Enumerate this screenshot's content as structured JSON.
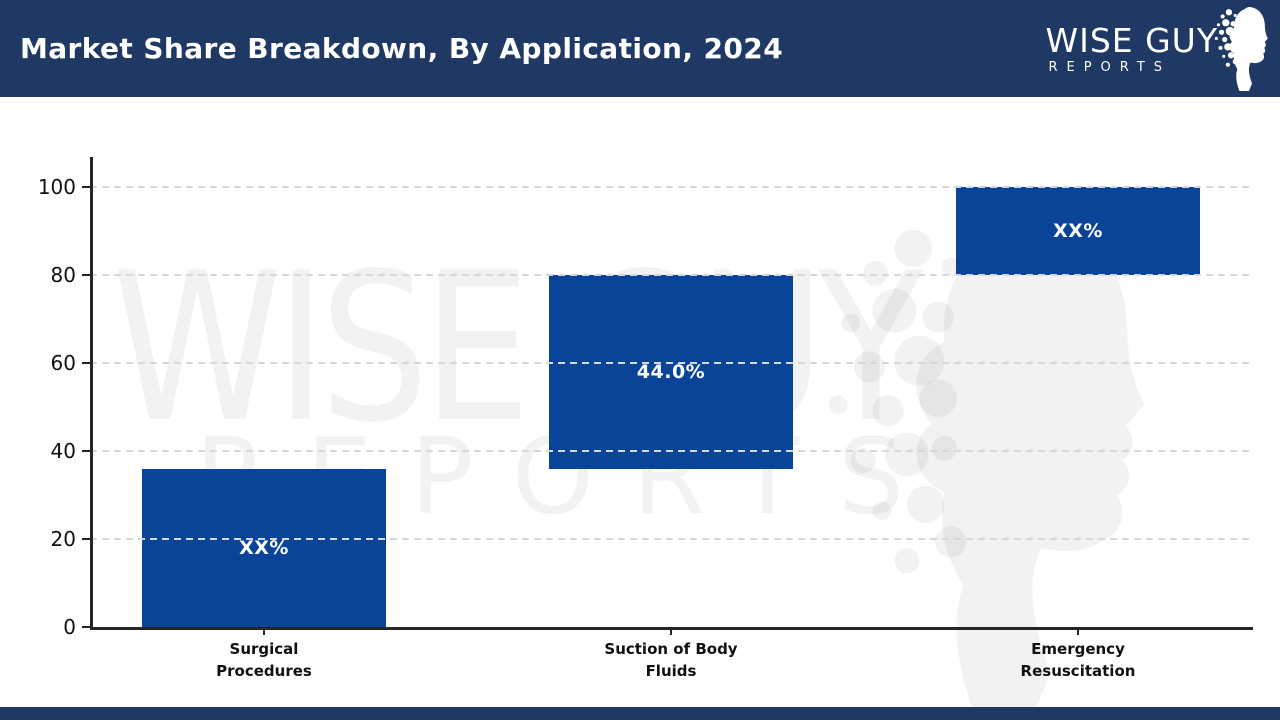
{
  "header": {
    "title": "Market Share Breakdown, By Application, 2024",
    "logo": {
      "brand": "WISE GUY",
      "tagline": "REPORTS"
    }
  },
  "watermark": {
    "brand": "WISE GUY",
    "tagline": "REPORTS"
  },
  "colors": {
    "header_bg": "#1f3864",
    "footer_bg": "#1f3864",
    "bar": "#0a4499",
    "bar_label": "#ffffff",
    "grid": "#d7d7d7",
    "axis": "#262626"
  },
  "chart_data": {
    "type": "bar",
    "subtype": "waterfall-breakdown",
    "title": "Market Share Breakdown, By Application, 2024",
    "unit": "%",
    "categories": [
      [
        "Surgical",
        "Procedures"
      ],
      [
        "Suction of Body",
        "Fluids"
      ],
      [
        "Emergency",
        "Resuscitation"
      ]
    ],
    "series": [
      {
        "name": "Market Share",
        "segments": [
          {
            "category": "Surgical Procedures",
            "start": 0,
            "end": 36,
            "label": "XX%"
          },
          {
            "category": "Suction of Body Fluids",
            "start": 36,
            "end": 80,
            "label": "44.0%"
          },
          {
            "category": "Emergency Resuscitation",
            "start": 80,
            "end": 100,
            "label": "XX%"
          }
        ]
      }
    ],
    "yticks": [
      0,
      20,
      40,
      60,
      80,
      100
    ],
    "ylim": [
      0,
      104
    ],
    "grid": "dashed-horizontal",
    "legend": "none"
  }
}
